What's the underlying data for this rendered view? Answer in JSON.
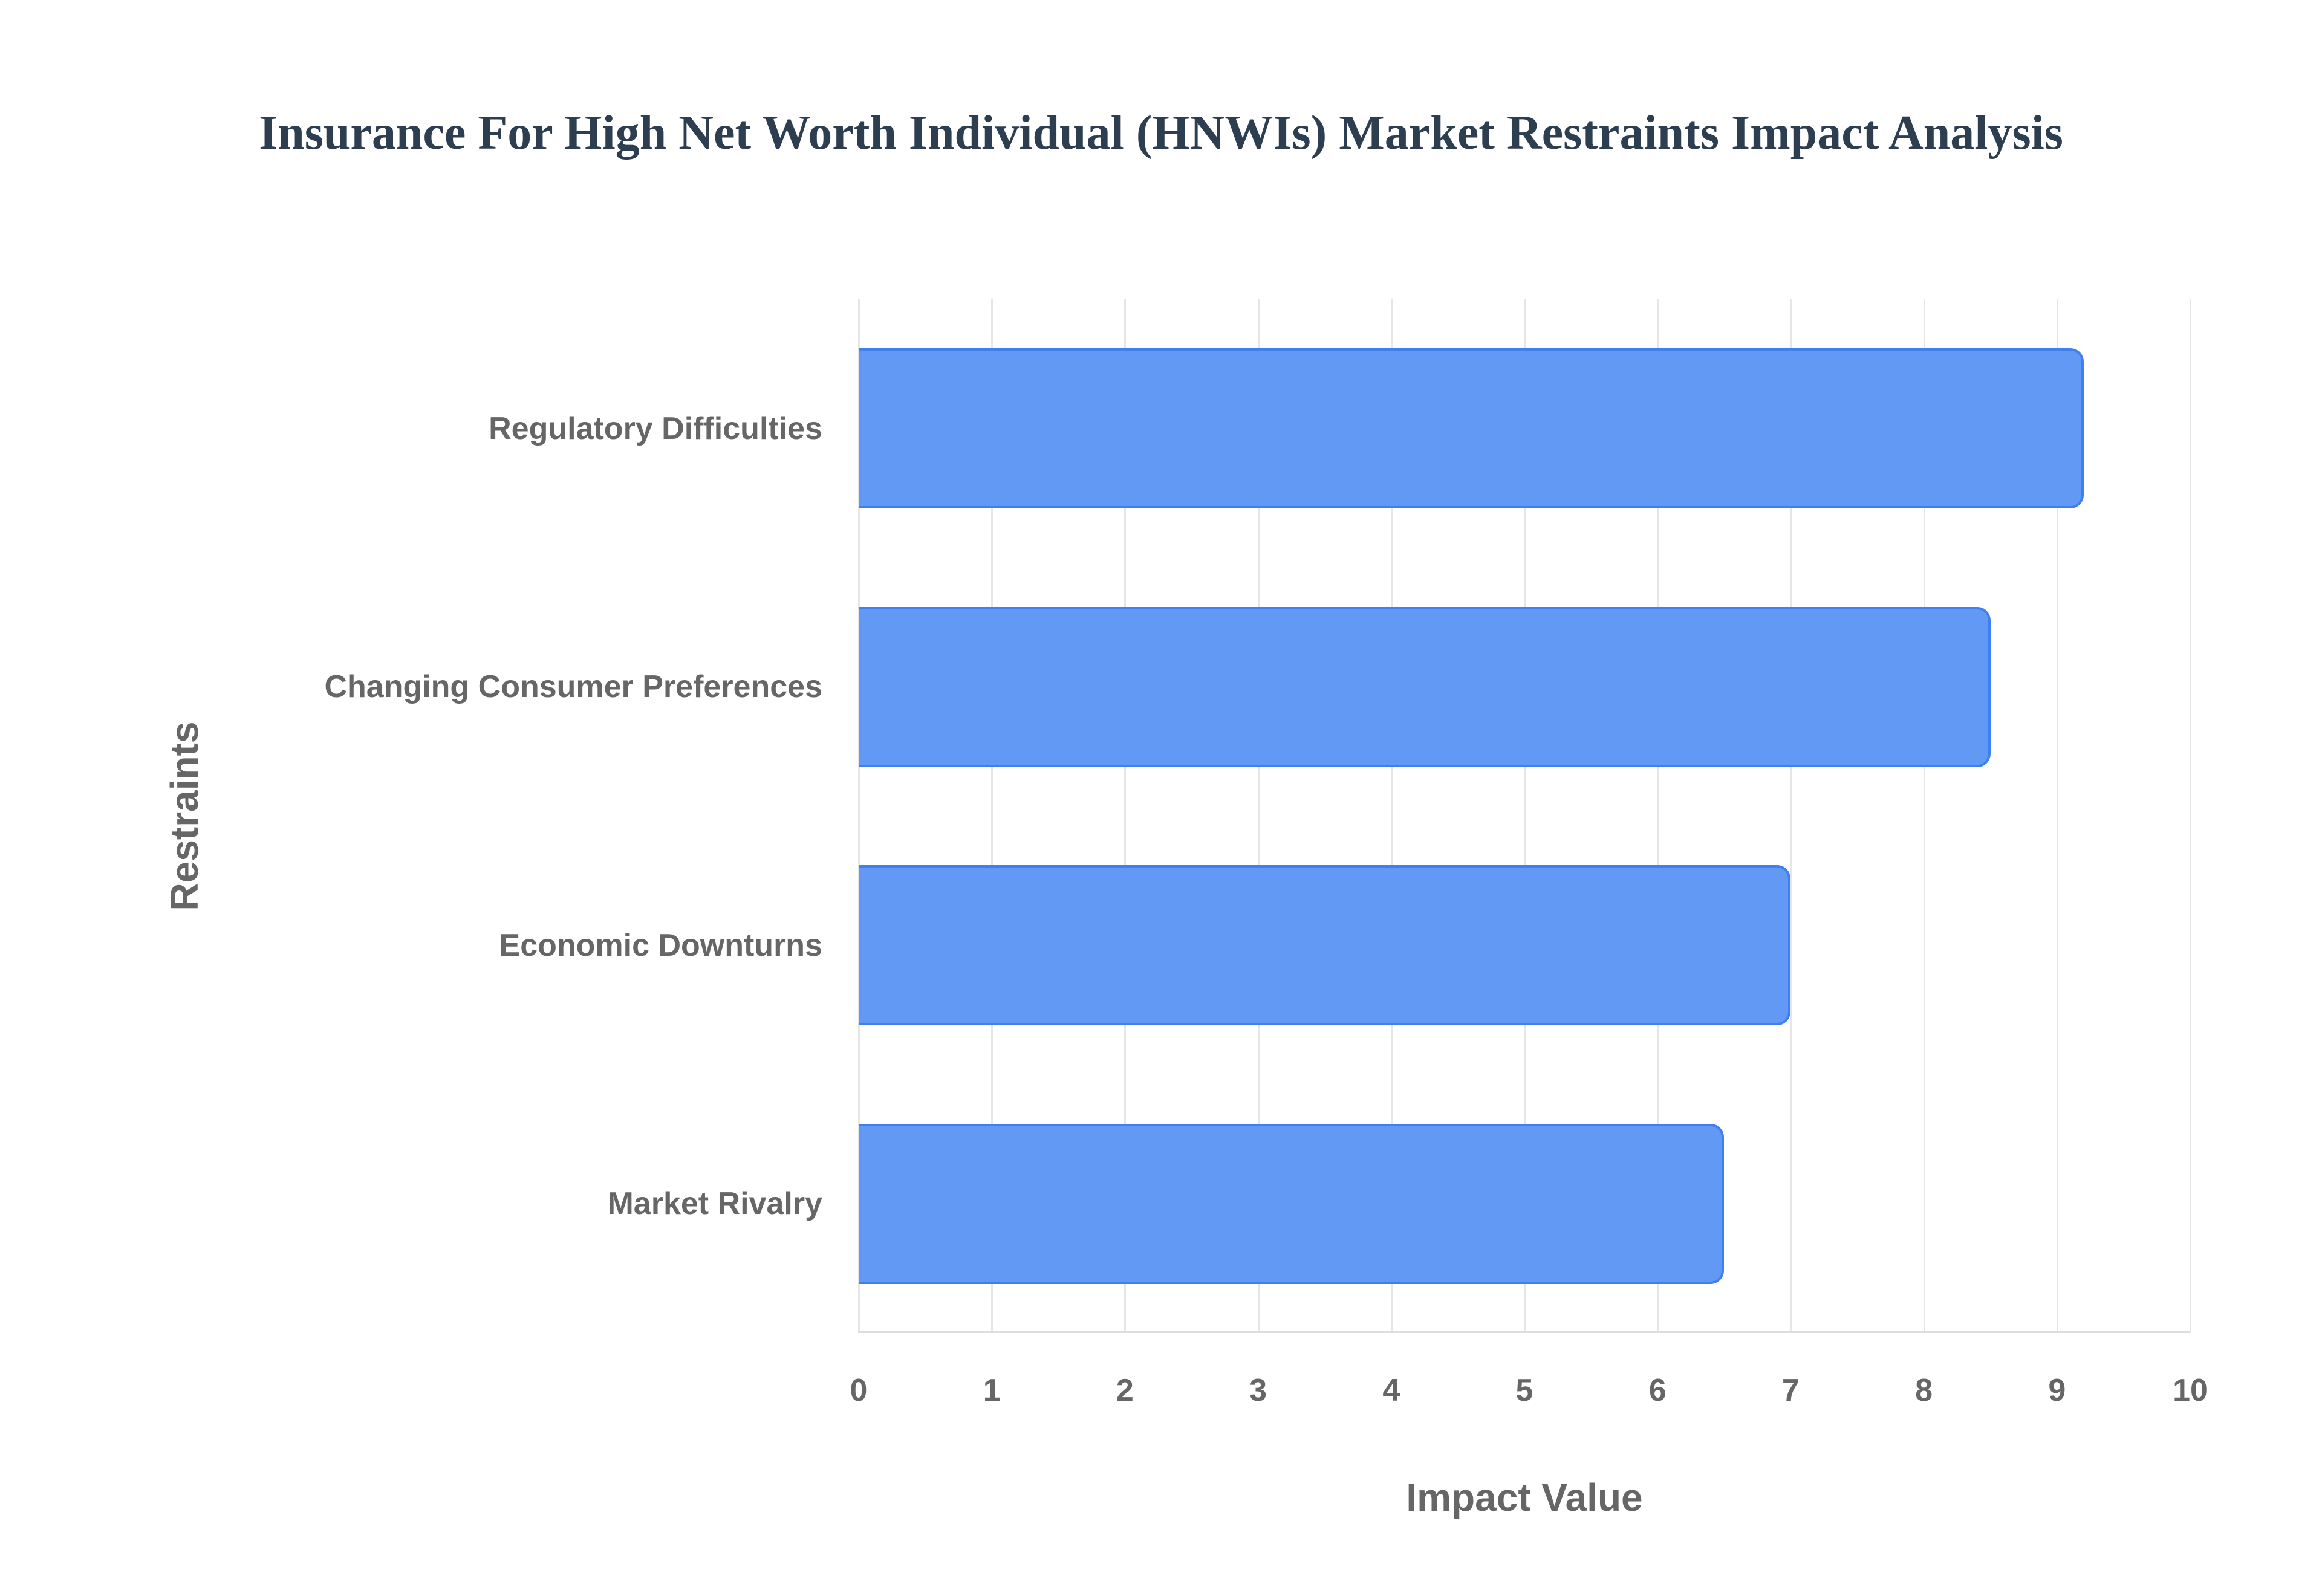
{
  "title": "Insurance For High Net Worth Individual (HNWIs) Market Restraints Impact Analysis",
  "colors": {
    "bar_fill": "#6199f5",
    "bar_border": "#3f7ff0",
    "text": "#666666",
    "title": "#2c3e50",
    "grid": "#e6e6e6"
  },
  "chart_data": {
    "type": "bar",
    "orientation": "horizontal",
    "title": "Insurance For High Net Worth Individual (HNWIs) Market Restraints Impact Analysis",
    "categories": [
      "Regulatory Difficulties",
      "Changing Consumer Preferences",
      "Economic Downturns",
      "Market Rivalry"
    ],
    "values": [
      9.2,
      8.5,
      7.0,
      6.5
    ],
    "xlabel": "Impact Value",
    "ylabel": "Restraints",
    "xlim": [
      0,
      10
    ],
    "xticks": [
      "0",
      "1",
      "2",
      "3",
      "4",
      "5",
      "6",
      "7",
      "8",
      "9",
      "10"
    ],
    "grid": true,
    "legend": null
  }
}
